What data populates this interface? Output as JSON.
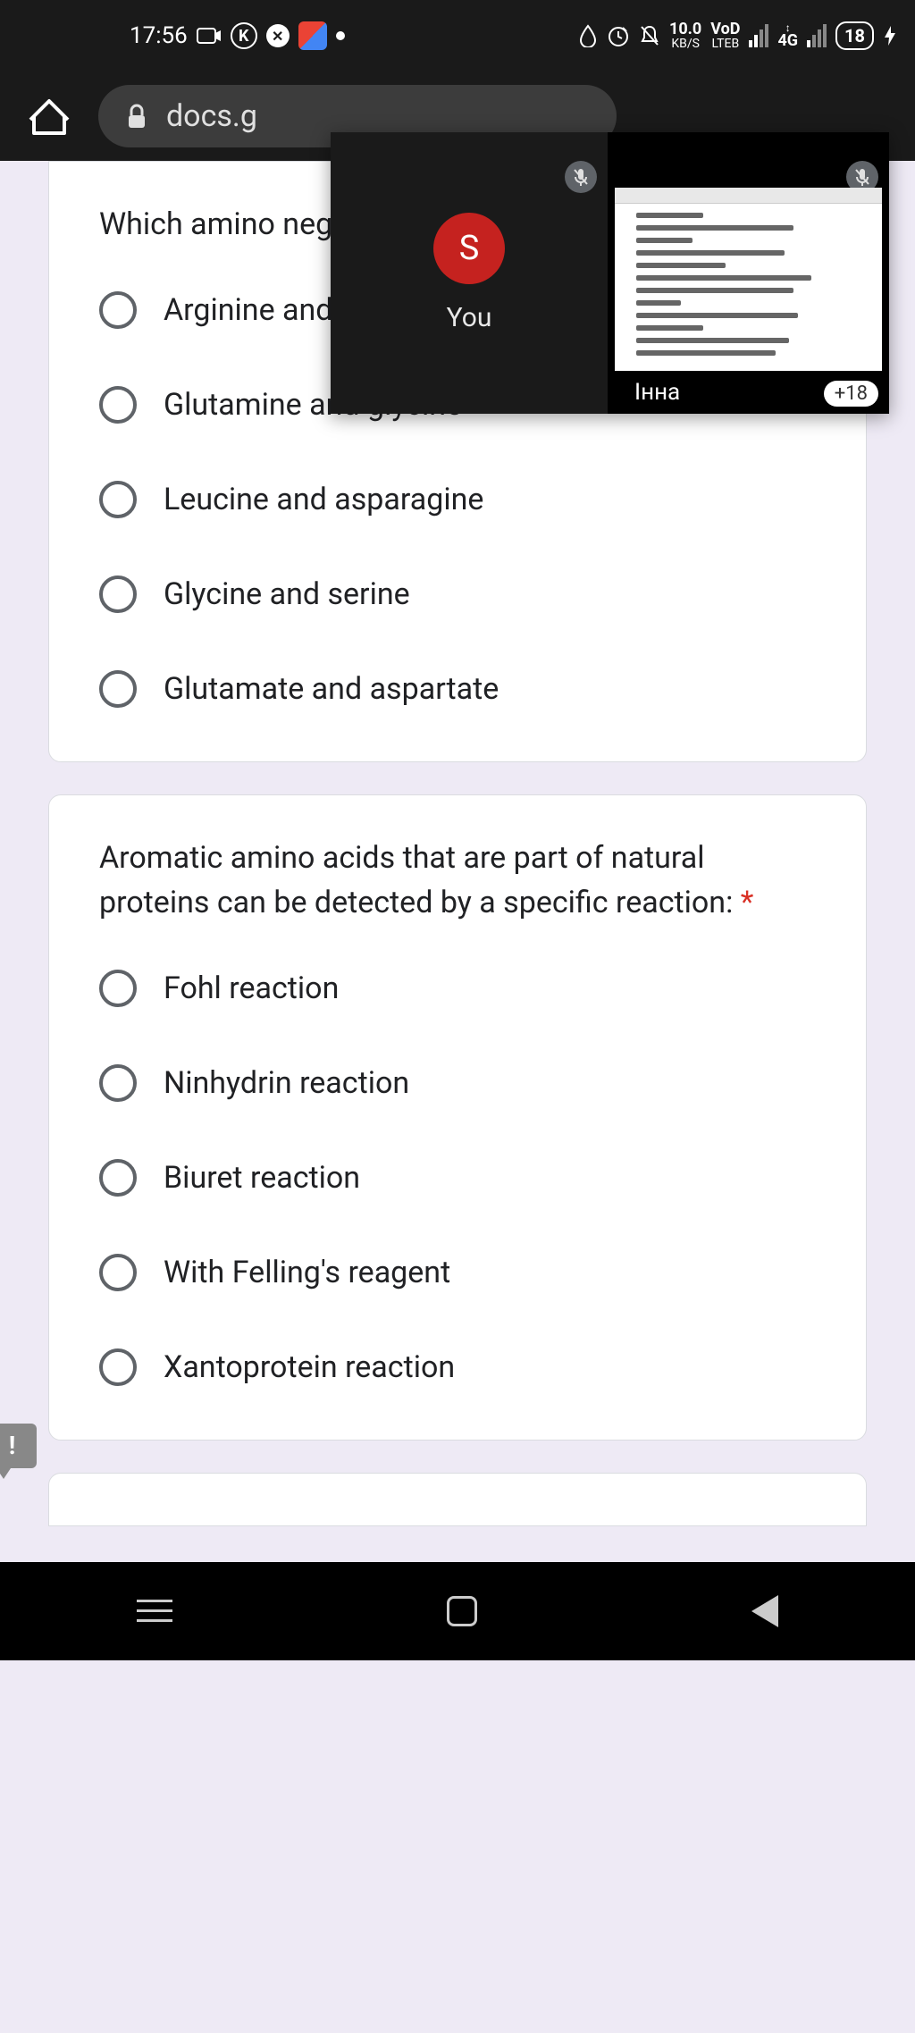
{
  "statusbar": {
    "time": "17:56",
    "network_rate_top": "10.0",
    "network_rate_bot": "KB/S",
    "volte_top": "VoD",
    "volte_bot": "LTEB",
    "net_type": "4G",
    "battery_pct": "18"
  },
  "browser": {
    "url": "docs.g"
  },
  "call_overlay": {
    "self_initial": "S",
    "self_label": "You",
    "peer_name": "Інна",
    "extra_count": "+18"
  },
  "form": {
    "q1": {
      "text_visible": "Which amino negatively ch",
      "options": [
        "Arginine and valine",
        "Glutamine and glycine",
        "Leucine and asparagine",
        "Glycine and serine",
        "Glutamate and aspartate"
      ]
    },
    "q2": {
      "text": "Aromatic amino acids that are part of natural proteins can be detected by a specific reaction:",
      "required": true,
      "options": [
        "Fohl reaction",
        "Ninhydrin reaction",
        "Biuret reaction",
        "With Felling's reagent",
        "Xantoprotein reaction"
      ]
    }
  },
  "colors": {
    "page_bg": "#eeeaf5",
    "card_bg": "#ffffff",
    "card_border": "#dadce0",
    "text": "#202124",
    "radio_border": "#5f6368",
    "required": "#d93025",
    "avatar_bg": "#c5221f",
    "statusbar_bg": "#1a1a1a"
  }
}
